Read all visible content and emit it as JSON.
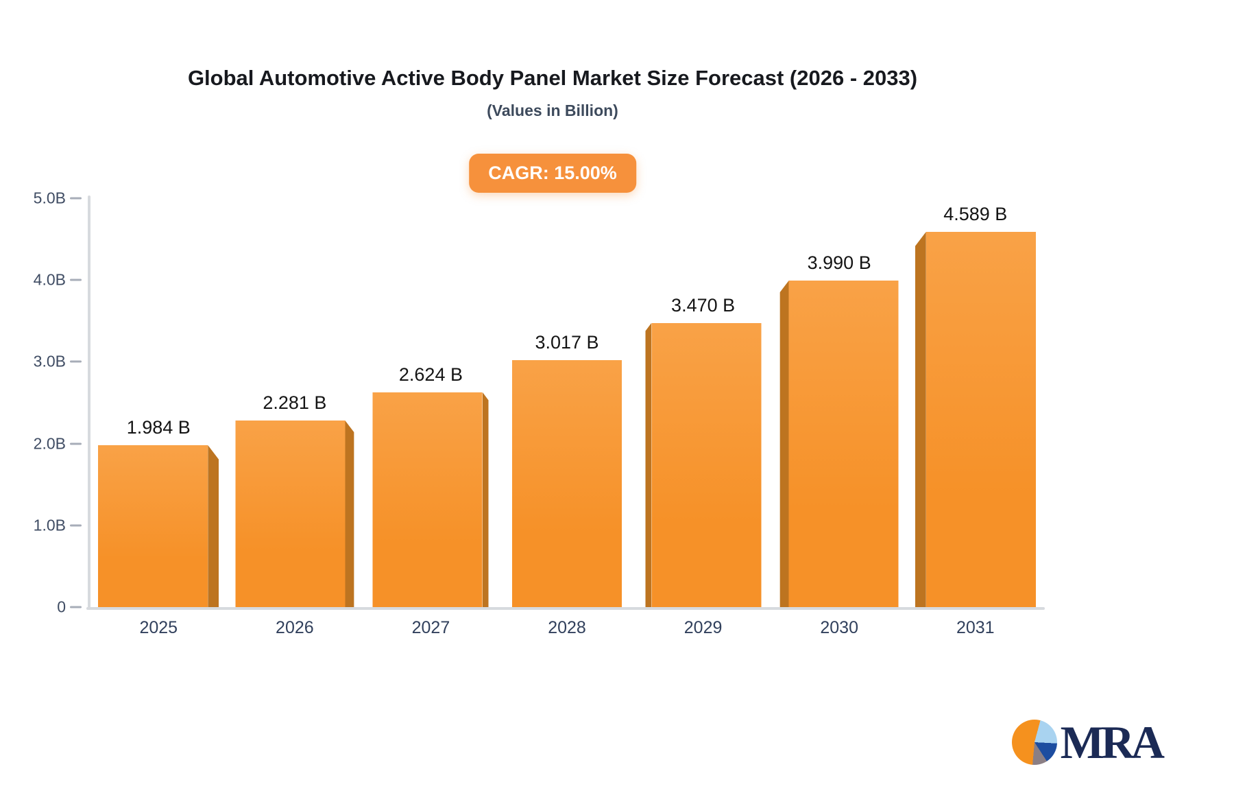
{
  "chart_data": {
    "type": "bar",
    "title": "Global Automotive Active Body Panel Market Size Forecast (2026 - 2033)",
    "subtitle": "(Values in Billion)",
    "cagr_label": "CAGR: 15.00%",
    "categories": [
      "2025",
      "2026",
      "2027",
      "2028",
      "2029",
      "2030",
      "2031"
    ],
    "values": [
      1.984,
      2.281,
      2.624,
      3.017,
      3.47,
      3.99,
      4.589
    ],
    "value_labels": [
      "1.984 B",
      "2.281 B",
      "2.624 B",
      "3.017 B",
      "3.470 B",
      "3.990 B",
      "4.589 B"
    ],
    "xlabel": "",
    "ylabel": "",
    "ylim": [
      0,
      5
    ],
    "y_tick_values": [
      0,
      1,
      2,
      3,
      4,
      5
    ],
    "y_tick_labels": [
      "0",
      "1.0B",
      "2.0B",
      "3.0B",
      "4.0B",
      "5.0B"
    ],
    "grid": false,
    "legend_position": "none",
    "bar_style": "3d-perspective",
    "colors": {
      "bar_face": "#f69128",
      "bar_face_light": "#f9a247",
      "bar_side": "#bd7420",
      "axis_line": "#d7dade",
      "tick_dash": "#a7adb8",
      "badge_bg": "#f6913c",
      "badge_text": "#ffffff",
      "title_text": "#17191e",
      "subtitle_text": "#3d4a5c",
      "value_text": "#141414",
      "x_label_text": "#31405c",
      "y_label_text": "#3f4c63"
    }
  },
  "logo": {
    "text": "MRA",
    "pie_colors": [
      "#f5911e",
      "#a9d3f0",
      "#1d4da0",
      "#8b7f85"
    ]
  }
}
